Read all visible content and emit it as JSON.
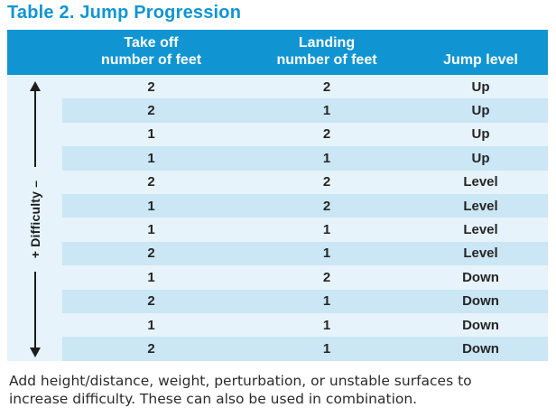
{
  "title": "Table 2. Jump Progression",
  "table": {
    "headers": {
      "takeoff_line1": "Take off",
      "takeoff_line2": "number of feet",
      "landing_line1": "Landing",
      "landing_line2": "number of feet",
      "jump_level": "Jump level"
    },
    "rows": [
      {
        "takeoff": "2",
        "landing": "2",
        "level": "Up"
      },
      {
        "takeoff": "2",
        "landing": "1",
        "level": "Up"
      },
      {
        "takeoff": "1",
        "landing": "2",
        "level": "Up"
      },
      {
        "takeoff": "1",
        "landing": "1",
        "level": "Up"
      },
      {
        "takeoff": "2",
        "landing": "2",
        "level": "Level"
      },
      {
        "takeoff": "1",
        "landing": "2",
        "level": "Level"
      },
      {
        "takeoff": "1",
        "landing": "1",
        "level": "Level"
      },
      {
        "takeoff": "2",
        "landing": "1",
        "level": "Level"
      },
      {
        "takeoff": "1",
        "landing": "2",
        "level": "Down"
      },
      {
        "takeoff": "2",
        "landing": "1",
        "level": "Down"
      },
      {
        "takeoff": "1",
        "landing": "1",
        "level": "Down"
      },
      {
        "takeoff": "2",
        "landing": "1",
        "level": "Down"
      }
    ]
  },
  "difficulty_axis": {
    "label": "+ Difficulty –"
  },
  "footer": {
    "note": "Add height/distance, weight, perturbation, or unstable surfaces to increase difficulty. These can also be used in combination."
  },
  "colors": {
    "accent_blue": "#1095d2",
    "row_light": "#e7f3fa",
    "row_striped": "#cbe6f4",
    "text_dark": "#262626"
  }
}
